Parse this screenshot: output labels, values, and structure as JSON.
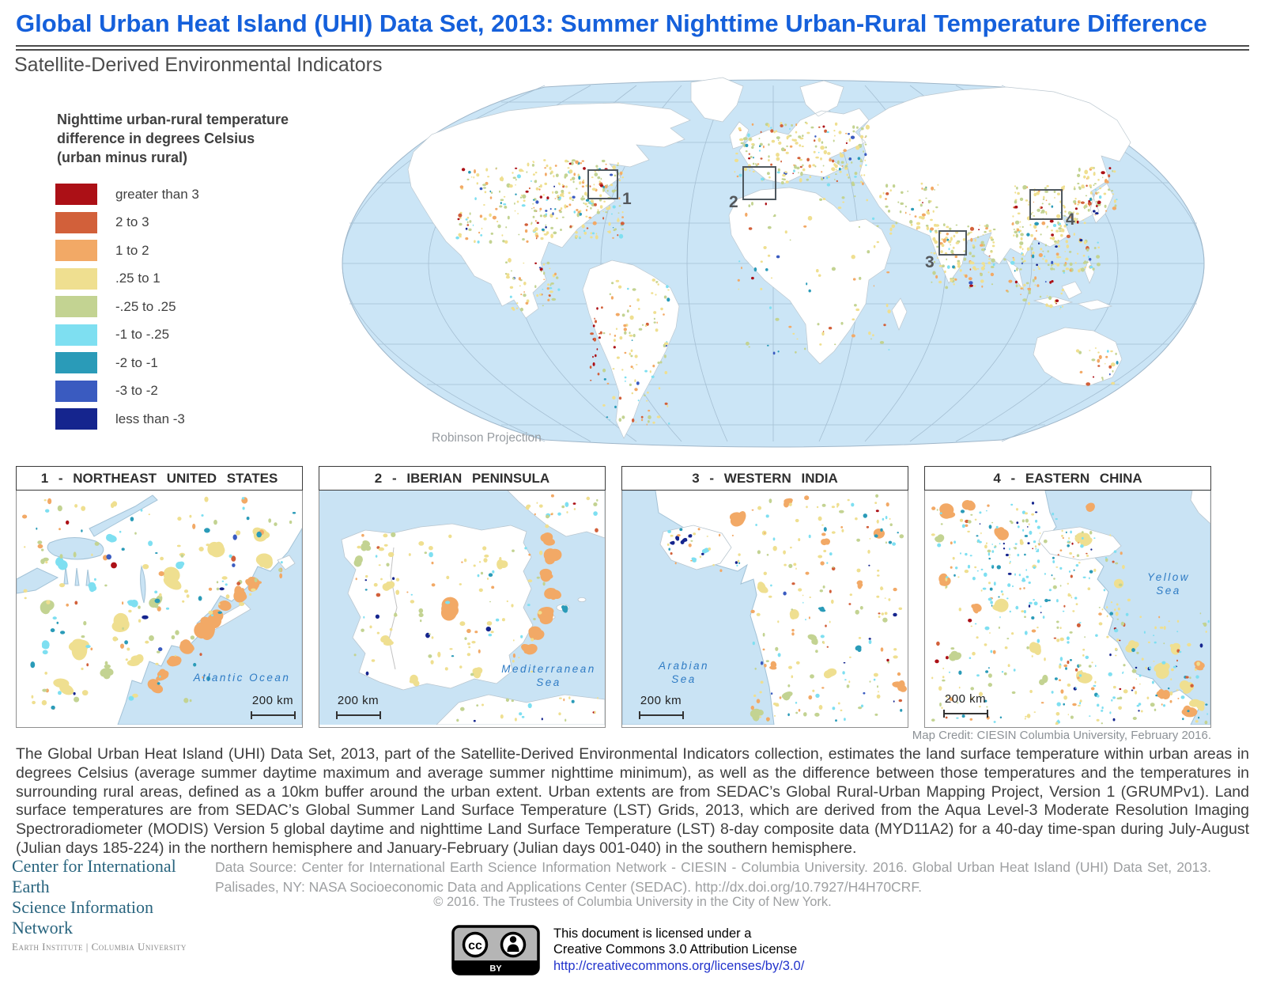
{
  "header": {
    "title": "Global Urban Heat Island (UHI) Data Set, 2013: Summer Nighttime Urban-Rural Temperature Difference",
    "subtitle": "Satellite-Derived Environmental Indicators"
  },
  "colors": {
    "title_blue": "#1560DB",
    "ocean": "#CBE5F6",
    "sea_label_blue": "#2E7BC4"
  },
  "legend": {
    "title": "Nighttime urban-rural temperature\ndifference in degrees Celsius\n(urban minus rural)",
    "items": [
      {
        "label": "greater than 3",
        "color": "#AC1016"
      },
      {
        "label": "2 to 3",
        "color": "#D2603A"
      },
      {
        "label": "1 to 2",
        "color": "#F2A966"
      },
      {
        "label": ".25 to 1",
        "color": "#EFDF90"
      },
      {
        "label": "-.25 to .25",
        "color": "#C3D392"
      },
      {
        "label": "-1 to -.25",
        "color": "#7EDFF1"
      },
      {
        "label": "-2 to -1",
        "color": "#2A9BB8"
      },
      {
        "label": "-3 to -2",
        "color": "#3A5BC0"
      },
      {
        "label": "less than -3",
        "color": "#15258E"
      }
    ]
  },
  "world_map": {
    "projection_label": "Robinson Projection",
    "region_markers": [
      {
        "num": "1"
      },
      {
        "num": "2"
      },
      {
        "num": "3"
      },
      {
        "num": "4"
      }
    ]
  },
  "panels": [
    {
      "title": "1 - NORTHEAST UNITED STATES",
      "sea_line1": "Atlantic Ocean",
      "sea_line2": "",
      "scale_label": "200 km"
    },
    {
      "title": "2 - IBERIAN PENINSULA",
      "sea_line1": "Mediterranean",
      "sea_line2": "Sea",
      "scale_label": "200 km"
    },
    {
      "title": "3 - WESTERN INDIA",
      "sea_line1": "Arabian",
      "sea_line2": "Sea",
      "scale_label": "200 km"
    },
    {
      "title": "4 - EASTERN CHINA",
      "sea_line1": "Yellow",
      "sea_line2": "Sea",
      "scale_label": "200 km"
    }
  ],
  "map_credit": "Map Credit: CIESIN Columbia University, February 2016.",
  "description": "The Global Urban Heat Island (UHI) Data Set, 2013, part of the Satellite-Derived Environmental Indicators collection, estimates the land surface temperature within urban areas in degrees Celsius (average summer daytime maximum and average summer nighttime minimum), as well as the difference between those temperatures and the temperatures in surrounding rural areas, defined as a 10km buffer around the urban extent. Urban extents are from SEDAC’s Global Rural-Urban Mapping Project, Version 1 (GRUMPv1). Land surface temperatures are from SEDAC’s Global Summer Land Surface Temperature (LST) Grids, 2013, which are derived from the Aqua Level-3 Moderate Resolution Imaging Spectroradiometer (MODIS) Version 5 global daytime and nighttime Land Surface Temperature (LST) 8-day composite data (MYD11A2) for a 40-day time-span during July-August (Julian days 185-224) in the northern hemisphere and January-February (Julian days 001-040) in the southern hemisphere.",
  "footer": {
    "logo": {
      "line1": "Center for International Earth",
      "line2": "Science Information Network",
      "line3": "Earth Institute | Columbia University"
    },
    "data_source": "Data Source: Center for International Earth Science Information Network - CIESIN - Columbia University. 2016. Global Urban Heat Island (UHI) Data Set, 2013. Palisades, NY: NASA Socioeconomic Data and Applications Center (SEDAC). http://dx.doi.org/10.7927/H4H70CRF.",
    "copyright": "© 2016. The Trustees of Columbia University in the City of New York.",
    "license": {
      "badge_cc": "cc",
      "badge_by": "BY",
      "line1": "This document is licensed under a",
      "line2": "Creative Commons 3.0 Attribution License",
      "link": "http://creativecommons.org/licenses/by/3.0/"
    }
  }
}
